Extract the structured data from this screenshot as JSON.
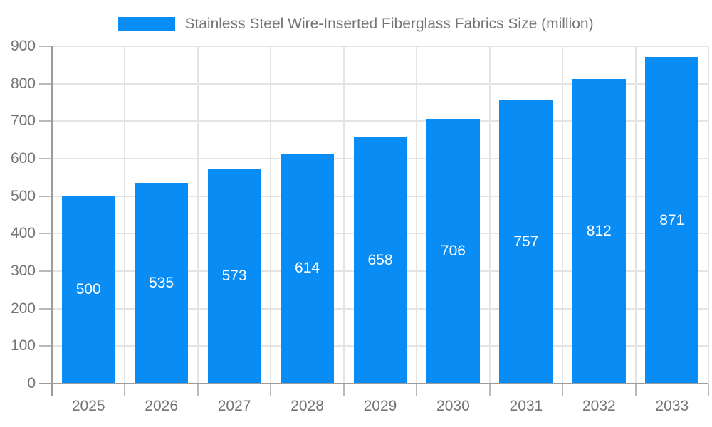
{
  "chart_data": {
    "type": "bar",
    "legend_label": "Stainless Steel Wire-Inserted Fiberglass Fabrics Size (million)",
    "legend_position": "top",
    "categories": [
      "2025",
      "2026",
      "2027",
      "2028",
      "2029",
      "2030",
      "2031",
      "2032",
      "2033"
    ],
    "series": [
      {
        "name": "Stainless Steel Wire-Inserted Fiberglass Fabrics Size (million)",
        "values": [
          500,
          535,
          573,
          614,
          658,
          706,
          757,
          812,
          871
        ]
      }
    ],
    "bar_labels_shown": true,
    "xlabel": "",
    "ylabel": "",
    "ylim": [
      0,
      900
    ],
    "ytick_step": 100,
    "ytick_labels": [
      "0",
      "100",
      "200",
      "300",
      "400",
      "500",
      "600",
      "700",
      "800",
      "900"
    ],
    "grid": true,
    "colors": {
      "bar": "#0a8cf5",
      "bar_value_text": "#ffffff",
      "axis_text": "#757575",
      "legend_text": "#757575",
      "gridline": "#e4e4e4",
      "axis_line": "#9b9b9b",
      "tick": "#b8b8b8",
      "background": "#ffffff"
    }
  }
}
